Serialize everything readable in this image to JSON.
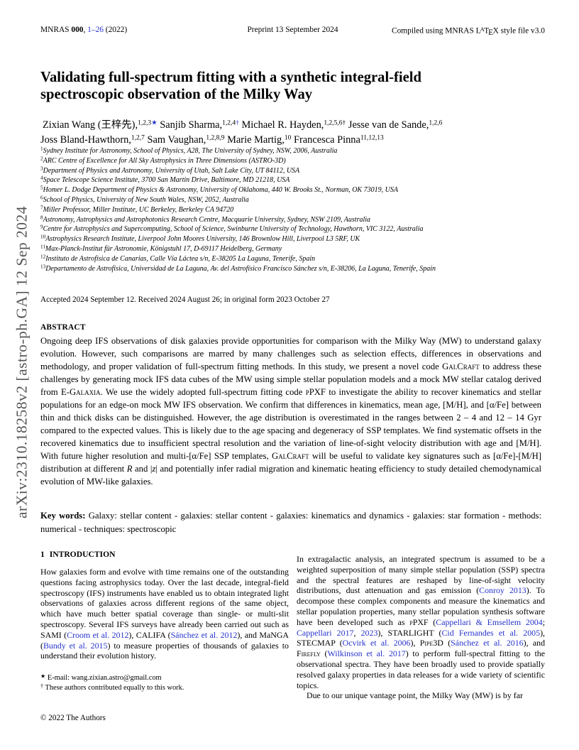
{
  "colors": {
    "link": "#2633cc",
    "watermark_gray": "#555555",
    "text": "#000000",
    "background": "#ffffff"
  },
  "header": {
    "journal_runs": [
      {
        "t": "MNRAS "
      },
      {
        "t": "000",
        "s": "b"
      },
      {
        "t": ", "
      },
      {
        "t": "1–26",
        "s": "link"
      },
      {
        "t": " (2022)"
      }
    ],
    "preprint": "Preprint 13 September 2024",
    "compiled_runs": [
      {
        "t": "Compiled using MNRAS L"
      },
      {
        "t": "A",
        "s": "lA"
      },
      {
        "t": "T"
      },
      {
        "t": "E",
        "s": "lE"
      },
      {
        "t": "X style file v3.0"
      }
    ]
  },
  "sidebar_text": "arXiv:2310.18258v2  [astro-ph.GA]  12 Sep 2024",
  "title": {
    "line1": "Validating full-spectrum fitting with a synthetic integral-field",
    "line2": "spectroscopic observation of the Milky Way"
  },
  "authors": {
    "line1_runs": [
      {
        "t": "Zixian Wang (王梓先),"
      },
      {
        "t": "1,2,3",
        "s": "sup"
      },
      {
        "t": "★",
        "s": "supl"
      },
      {
        "t": " Sanjib Sharma,"
      },
      {
        "t": "1,2,4",
        "s": "sup"
      },
      {
        "t": "†",
        "s": "supl"
      },
      {
        "t": " Michael R. Hayden,"
      },
      {
        "t": "1,2,5,6",
        "s": "sup"
      },
      {
        "t": "†",
        "s": "sup"
      },
      {
        "t": " Jesse van de Sande,"
      },
      {
        "t": "1,2,6",
        "s": "sup"
      }
    ],
    "line2_runs": [
      {
        "t": "Joss Bland-Hawthorn,"
      },
      {
        "t": "1,2,7",
        "s": "sup"
      },
      {
        "t": " Sam Vaughan,"
      },
      {
        "t": "1,2,8,9",
        "s": "sup"
      },
      {
        "t": " Marie Martig,"
      },
      {
        "t": "10",
        "s": "sup"
      },
      {
        "t": " Francesca Pinna"
      },
      {
        "t": "11,12,13",
        "s": "sup"
      }
    ]
  },
  "affiliations": [
    {
      "num": "1",
      "text": "Sydney Institute for Astronomy, School of Physics, A28, The University of Sydney, NSW, 2006, Australia"
    },
    {
      "num": "2",
      "text": "ARC Centre of Excellence for All Sky Astrophysics in Three Dimensions (ASTRO-3D)"
    },
    {
      "num": "3",
      "text": "Department of Physics and Astronomy, University of Utah, Salt Lake City, UT 84112, USA"
    },
    {
      "num": "4",
      "text": "Space Telescope Science Institute, 3700 San Martin Drive, Baltimore, MD 21218, USA"
    },
    {
      "num": "5",
      "text": "Homer L. Dodge Department of Physics & Astronomy, University of Oklahoma, 440 W. Brooks St., Norman, OK 73019, USA"
    },
    {
      "num": "6",
      "text": "School of Physics, University of New South Wales, NSW, 2052, Australia"
    },
    {
      "num": "7",
      "text": "Miller Professor, Miller Institute, UC Berkeley, Berkeley CA 94720"
    },
    {
      "num": "8",
      "text": "Astronomy, Astrophysics and Astrophotonics Research Centre, Macquarie University, Sydney, NSW 2109, Australia"
    },
    {
      "num": "9",
      "text": "Centre for Astrophysics and Supercomputing, School of Science, Swinburne University of Technology, Hawthorn, VIC 3122, Australia"
    },
    {
      "num": "10",
      "text": "Astrophysics Research Institute, Liverpool John Moores University, 146 Brownlow Hill, Liverpool L3 5RF, UK"
    },
    {
      "num": "11",
      "text": "Max-Planck-Institut für Astronomie, Königstuhl 17, D-69117 Heidelberg, Germany"
    },
    {
      "num": "12",
      "text": "Instituto de Astrofísica de Canarias, Calle Vía Láctea s/n, E-38205 La Laguna, Tenerife, Spain"
    },
    {
      "num": "13",
      "text": "Departamento de Astrofísica, Universidad de La Laguna, Av. del Astrofísico Francisco Sánchez s/n, E-38206, La Laguna, Tenerife, Spain"
    }
  ],
  "dates_line": "Accepted 2024 September 12. Received 2024 August 26; in original form 2023 October 27",
  "abstract": {
    "heading": "ABSTRACT",
    "body_runs": [
      {
        "t": "Ongoing deep IFS observations of disk galaxies provide opportunities for comparison with the Milky Way (MW) to understand galaxy evolution. However, such comparisons are marred by many challenges such as selection effects, differences in observations and methodology, and proper validation of full-spectrum fitting methods. In this study, we present a novel code "
      },
      {
        "t": "GalCraft",
        "s": "sc"
      },
      {
        "t": " to address these challenges by generating mock IFS data cubes of the MW using simple stellar population models and a mock MW stellar catalog derived from E-"
      },
      {
        "t": "Galaxia",
        "s": "sc"
      },
      {
        "t": ". We use the widely adopted full-spectrum fitting code "
      },
      {
        "t": "pPXF",
        "s": "sc"
      },
      {
        "t": " to investigate the ability to recover kinematics and stellar populations for an edge-on mock MW IFS observation. We confirm that differences in kinematics, mean age, [M/H], and [α/Fe] between thin and thick disks can be distinguished. However, the age distribution is overestimated in the ranges between 2 – 4 and 12 – 14 Gyr compared to the expected values. This is likely due to the age spacing and degeneracy of SSP templates. We find systematic offsets in the recovered kinematics due to insufficient spectral resolution and the variation of line-of-sight velocity distribution with age and [M/H]. With future higher resolution and multi-[α/Fe] SSP templates, "
      },
      {
        "t": "GalCraft",
        "s": "sc"
      },
      {
        "t": " will be useful to validate key signatures such as [α/Fe]-[M/H] distribution at different "
      },
      {
        "t": "R",
        "s": "i"
      },
      {
        "t": " and |"
      },
      {
        "t": "z",
        "s": "i"
      },
      {
        "t": "| and potentially infer radial migration and kinematic heating efficiency to study detailed chemodynamical evolution of MW-like galaxies."
      }
    ]
  },
  "keywords_runs": [
    {
      "t": "Key words: ",
      "s": "b"
    },
    {
      "t": " Galaxy: stellar content - galaxies: stellar content - galaxies: kinematics and dynamics - galaxies: star formation - methods: numerical - techniques: spectroscopic"
    }
  ],
  "intro": {
    "heading": "1 INTRODUCTION",
    "left_runs": [
      {
        "t": "How galaxies form and evolve with time remains one of the outstanding questions facing astrophysics today. Over the last decade, integral-field spectroscopy (IFS) instruments have enabled us to obtain integrated light observations of galaxies across different regions of the same object, which have much better spatial coverage than single- or multi-slit spectroscopy. Several IFS surveys have already been carried out such as SAMI ("
      },
      {
        "t": "Croom et al. 2012",
        "s": "link"
      },
      {
        "t": "), CALIFA ("
      },
      {
        "t": "Sánchez et al. 2012",
        "s": "link"
      },
      {
        "t": "), and MaNGA ("
      },
      {
        "t": "Bundy et al. 2015",
        "s": "link"
      },
      {
        "t": ") to measure properties of thousands of galaxies to understand their evolution history."
      }
    ],
    "right_p1_runs": [
      {
        "t": "In extragalactic analysis, an integrated spectrum is assumed to be a weighted superposition of many simple stellar population (SSP) spectra and the spectral features are reshaped by line-of-sight velocity distributions, dust attenuation and gas emission ("
      },
      {
        "t": "Conroy 2013",
        "s": "link"
      },
      {
        "t": "). To decompose these complex components and measure the kinematics and stellar population properties, many stellar population synthesis software have been developed such as "
      },
      {
        "t": "pPXF",
        "s": "sc"
      },
      {
        "t": " ("
      },
      {
        "t": "Cappellari & Emsellem 2004",
        "s": "link"
      },
      {
        "t": "; "
      },
      {
        "t": "Cappellari 2017",
        "s": "link"
      },
      {
        "t": ", "
      },
      {
        "t": "2023",
        "s": "link"
      },
      {
        "t": "), STARLIGHT ("
      },
      {
        "t": "Cid Fernandes et al. 2005",
        "s": "link"
      },
      {
        "t": "), STECMAP ("
      },
      {
        "t": "Ocvirk et al. 2006",
        "s": "link"
      },
      {
        "t": "), "
      },
      {
        "t": "Pipe3D",
        "s": "sc"
      },
      {
        "t": " ("
      },
      {
        "t": "Sánchez et al. 2016",
        "s": "link"
      },
      {
        "t": "), and "
      },
      {
        "t": "Firefly",
        "s": "sc"
      },
      {
        "t": " ("
      },
      {
        "t": "Wilkinson et al. 2017",
        "s": "link"
      },
      {
        "t": ") to perform full-spectral fitting to the observational spectra. They have been broadly used to provide spatially resolved galaxy properties in data releases for a wide variety of scientific topics."
      }
    ],
    "right_p2": "Due to our unique vantage point, the Milky Way (MW) is by far"
  },
  "footnotes": {
    "line1_runs": [
      {
        "t": "★",
        "s": "fn"
      },
      {
        "t": " E-mail: wang.zixian.astro@gmail.com"
      }
    ],
    "line2_runs": [
      {
        "t": "†",
        "s": "fn"
      },
      {
        "t": " These authors contributed equally to this work."
      }
    ]
  },
  "copyright": "© 2022 The Authors"
}
